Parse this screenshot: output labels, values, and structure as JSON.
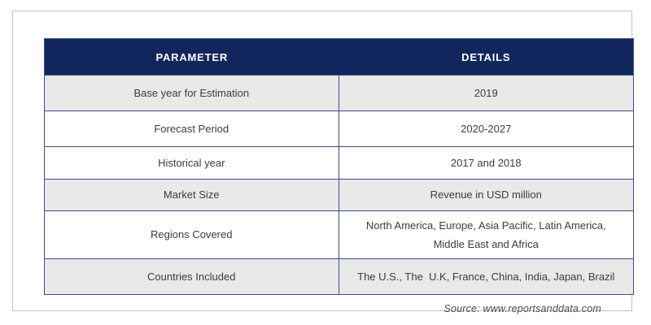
{
  "table": {
    "headers": {
      "parameter": "PARAMETER",
      "details": "DETAILS"
    },
    "rows": [
      {
        "param": "Base year for Estimation",
        "details": "2019"
      },
      {
        "param": "Forecast Period",
        "details": "2020-2027"
      },
      {
        "param": "Historical year",
        "details": "2017 and 2018"
      },
      {
        "param": "Market Size",
        "details": "Revenue in USD million"
      },
      {
        "param": "Regions Covered",
        "details": "North America, Europe, Asia Pacific, Latin America, Middle East and Africa"
      },
      {
        "param": "Countries Included",
        "details": "The U.S., The  U.K, France, China, India, Japan, Brazil"
      }
    ]
  },
  "source": {
    "credit": "Source: www.reportsanddata.com"
  },
  "colors": {
    "header_bg": "#12265e",
    "header_text": "#ffffff",
    "row_shaded_bg": "#e9e9e9",
    "row_plain_bg": "#ffffff",
    "border": "#3e4e80",
    "outer_frame_border": "#c4c4c4",
    "body_text": "#3c3c3c"
  }
}
